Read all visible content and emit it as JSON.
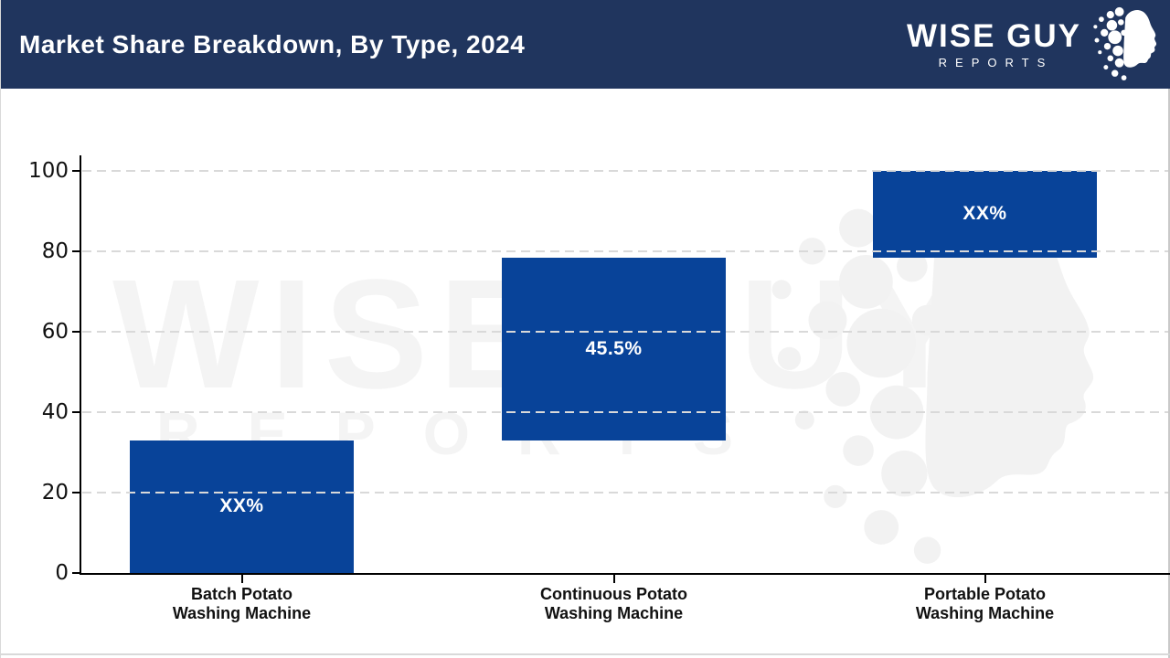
{
  "header": {
    "title": "Market Share Breakdown, By Type, 2024",
    "logo": {
      "wordmark": "WISE GUY",
      "subtitle": "REPORTS"
    },
    "bg_color": "#20355e"
  },
  "watermark": {
    "wordmark": "WISE GUY",
    "subtitle": "REPORTS"
  },
  "chart_data": {
    "type": "bar",
    "subtype": "floating-segment-waterfall",
    "title": "Market Share Breakdown, By Type, 2024",
    "xlabel": "",
    "ylabel": "",
    "ylim": [
      0,
      100
    ],
    "yticks": [
      0,
      20,
      40,
      60,
      80,
      100
    ],
    "grid": "horizontal-dashed",
    "legend": "none",
    "bar_color": "#084399",
    "bar_label_color": "#ffffff",
    "categories": [
      {
        "line1": "Batch Potato",
        "line2": "Washing Machine"
      },
      {
        "line1": "Continuous Potato",
        "line2": "Washing Machine"
      },
      {
        "line1": "Portable Potato",
        "line2": "Washing Machine"
      }
    ],
    "segments": [
      {
        "category": "Batch Potato Washing Machine",
        "start": 0,
        "end": 33,
        "value_shown": "XX%"
      },
      {
        "category": "Continuous Potato Washing Machine",
        "start": 33,
        "end": 78.5,
        "value_shown": "45.5%"
      },
      {
        "category": "Portable Potato Washing Machine",
        "start": 78.5,
        "end": 100,
        "value_shown": "XX%"
      }
    ]
  }
}
